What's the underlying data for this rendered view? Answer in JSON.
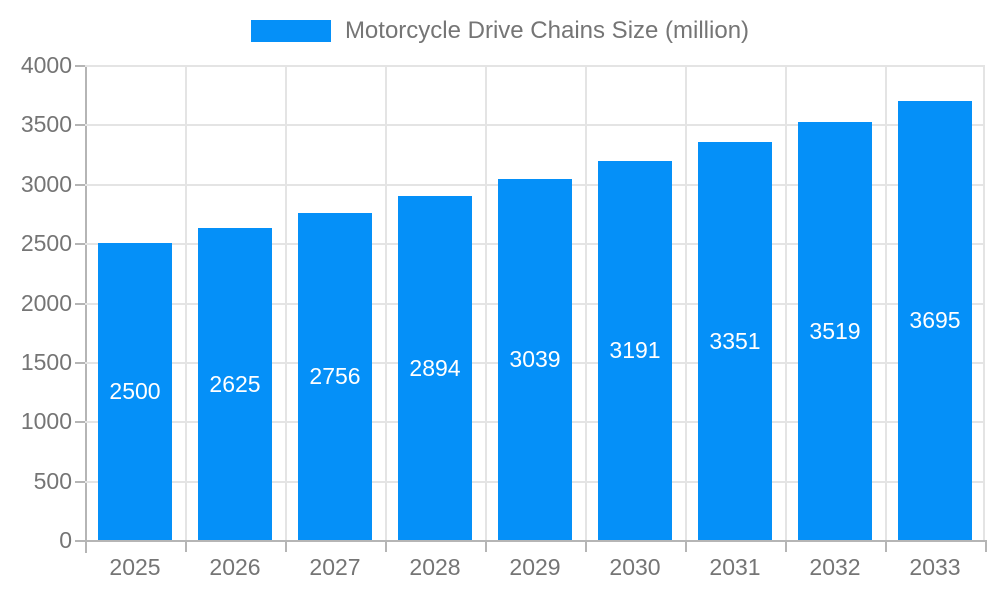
{
  "legend": {
    "label": "Motorcycle Drive Chains Size (million)"
  },
  "colors": {
    "bar": "#0590F8",
    "axis_label": "#757575",
    "grid_line": "#E4E4E4",
    "axis_line": "#B5B5B5",
    "value_label": "#FFFFFF",
    "background": "#FFFFFF"
  },
  "chart_data": {
    "type": "bar",
    "title": "Motorcycle Drive Chains Size (million)",
    "series_name": "Motorcycle Drive Chains Size (million)",
    "categories": [
      "2025",
      "2026",
      "2027",
      "2028",
      "2029",
      "2030",
      "2031",
      "2032",
      "2033"
    ],
    "values": [
      2500,
      2625,
      2756,
      2894,
      3039,
      3191,
      3351,
      3519,
      3695
    ],
    "xlabel": "",
    "ylabel": "",
    "ylim": [
      0,
      4000
    ],
    "ytick_step": 500,
    "yticks": [
      0,
      500,
      1000,
      1500,
      2000,
      2500,
      3000,
      3500,
      4000
    ],
    "grid": true,
    "legend_position": "top-center",
    "value_label_position": "inside-middle"
  }
}
